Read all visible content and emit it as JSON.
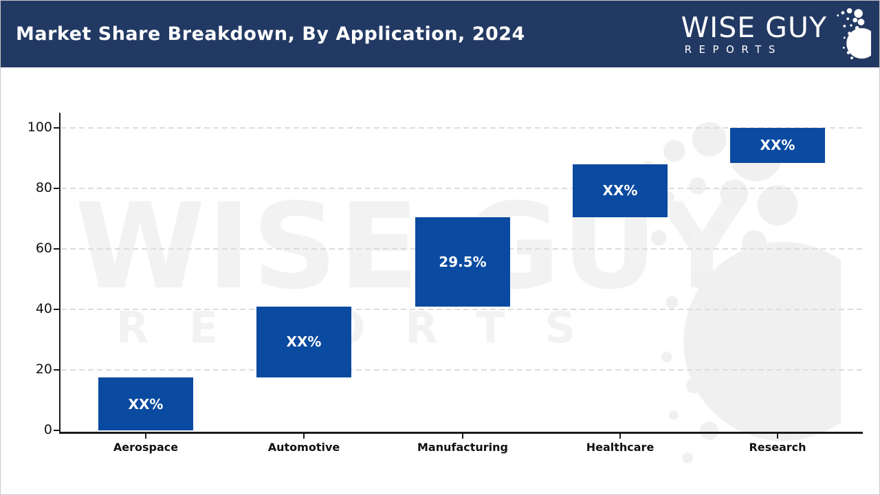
{
  "header": {
    "title": "Market Share Breakdown, By Application, 2024",
    "bg_color": "#223963",
    "logo": {
      "line1": "WISE GUY",
      "line2": "REPORTS",
      "head_icon": "dotted-head-profile"
    }
  },
  "watermark": {
    "line1": "WISE GUY",
    "line2": "REPORTS",
    "head_icon": "dotted-head-profile"
  },
  "chart_data": {
    "type": "bar",
    "subtype": "floating-waterfall",
    "title": "Market Share Breakdown, By Application, 2024",
    "categories": [
      "Aerospace",
      "Automotive",
      "Manufacturing",
      "Healthcare",
      "Research"
    ],
    "series": [
      {
        "name": "Market share (%)",
        "ranges": [
          [
            0,
            17.5
          ],
          [
            17.5,
            41
          ],
          [
            41,
            70.5
          ],
          [
            70.5,
            88
          ],
          [
            88.5,
            100
          ]
        ],
        "labels": [
          "XX%",
          "XX%",
          "29.5%",
          "XX%",
          "XX%"
        ]
      }
    ],
    "ylim": [
      0,
      105
    ],
    "yticks": [
      0,
      20,
      40,
      60,
      80,
      100
    ],
    "xlabel": "",
    "ylabel": "",
    "grid": "horizontal-dashed",
    "legend": "none",
    "bar_color": "#0a4aa0",
    "grid_color": "#dcdcdc",
    "axis_color": "#1a1a1a",
    "bar_label_color": "#ffffff",
    "tick_label_color": "#111111"
  }
}
